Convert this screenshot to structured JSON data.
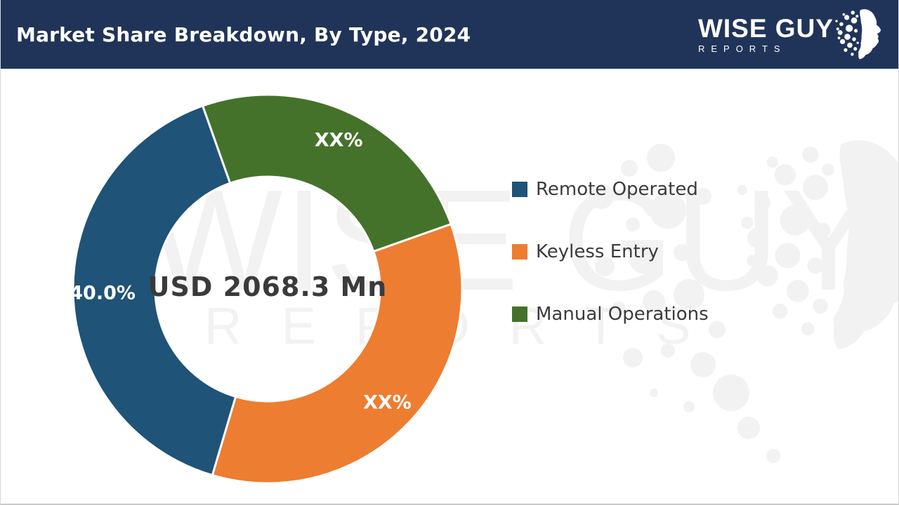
{
  "header": {
    "title": "Market Share Breakdown, By Type, 2024",
    "logo_line1": "WISE GUY",
    "logo_line2": "REPORTS"
  },
  "colors": {
    "header_bg": "#20345A",
    "remote_blue": "#1F5377",
    "keyless_orange": "#ED7D31",
    "manual_green": "#45722A",
    "text_dark": "#3A3A3A",
    "watermark_gray": "#f2f2f2"
  },
  "chart_data": {
    "type": "donut",
    "title": "Market Share Breakdown, By Type, 2024",
    "center_label": "USD 2068.3 Mn",
    "start_angle_deg": -19.5,
    "legend_position": "right",
    "segments": [
      {
        "label": "Manual Operations",
        "percent": 25,
        "display_value": "XX%",
        "color": "#45722A"
      },
      {
        "label": "Keyless Entry",
        "percent": 35,
        "display_value": "XX%",
        "color": "#ED7D31"
      },
      {
        "label": "Remote Operated",
        "percent": 40,
        "display_value": "40.0%",
        "color": "#1F5377"
      }
    ],
    "legend": [
      {
        "label": "Remote Operated",
        "color": "#1F5377"
      },
      {
        "label": "Keyless Entry",
        "color": "#ED7D31"
      },
      {
        "label": "Manual Operations",
        "color": "#45722A"
      }
    ]
  },
  "watermark": {
    "line1": "WISE GUY",
    "line2": "REPORTS"
  }
}
